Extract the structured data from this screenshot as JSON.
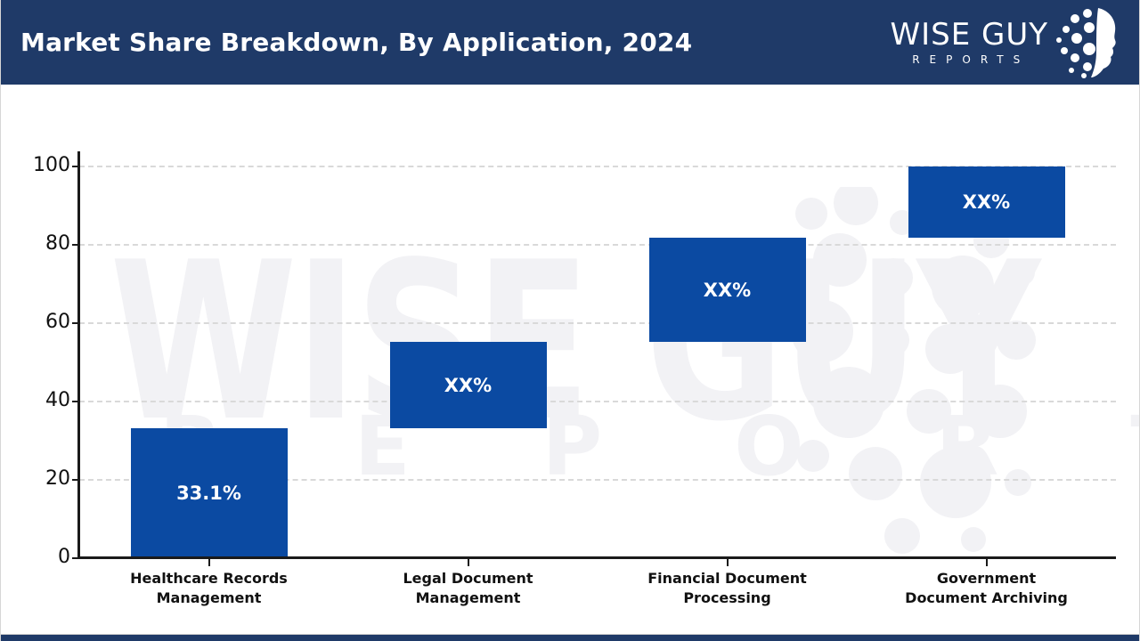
{
  "header": {
    "title": "Market Share Breakdown, By Application, 2024",
    "logo": {
      "line1": "WISE GUY",
      "line2": "REPORTS",
      "head_icon": "dotted-head-profile"
    }
  },
  "watermark": {
    "line1": "WISE GUY",
    "line2": "R E P O R T S",
    "head_icon": "dotted-head-profile"
  },
  "colors": {
    "header_bg": "#1F3A68",
    "footer_bg": "#1F3A68",
    "bar": "#0B4AA2",
    "grid": "#D9D9D9",
    "axis": "#1A1A1A",
    "bar_label": "#FFFFFF",
    "watermark": "#F2F2F5"
  },
  "chart_data": {
    "type": "bar",
    "subtype": "waterfall",
    "title": "Market Share Breakdown, By Application, 2024",
    "categories": [
      "Healthcare Records\nManagement",
      "Legal Document\nManagement",
      "Financial Document\nProcessing",
      "Government\nDocument Archiving"
    ],
    "segments": [
      {
        "category": "Healthcare Records Management",
        "start": 0,
        "end": 33.1,
        "label": "33.1%"
      },
      {
        "category": "Legal Document Management",
        "start": 33.1,
        "end": 55.2,
        "label": "XX%"
      },
      {
        "category": "Financial Document Processing",
        "start": 55.2,
        "end": 81.8,
        "label": "XX%"
      },
      {
        "category": "Government Document Archiving",
        "start": 81.8,
        "end": 100,
        "label": "XX%"
      }
    ],
    "ylim": [
      0,
      100
    ],
    "yticks": [
      0,
      20,
      40,
      60,
      80,
      100
    ],
    "xlabel": "",
    "ylabel": "",
    "grid": "horizontal-dashed",
    "legend": "none",
    "bar_color": "#0B4AA2"
  }
}
